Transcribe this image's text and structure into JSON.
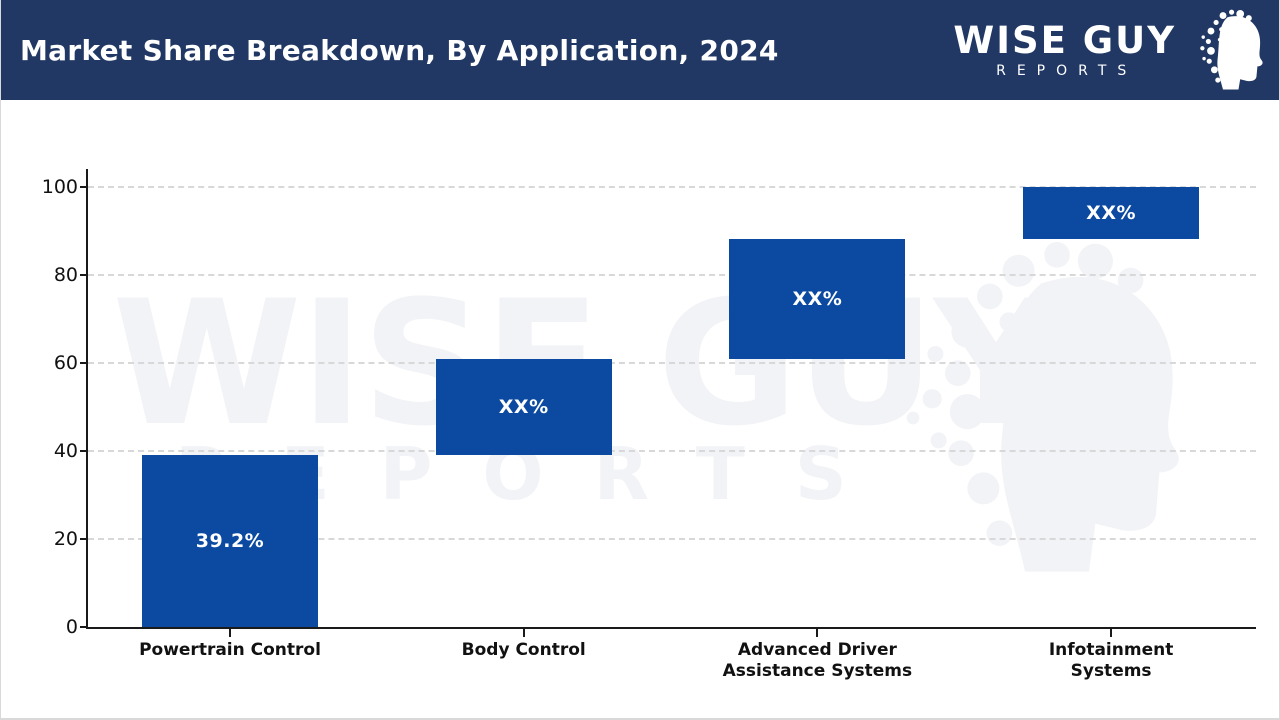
{
  "header": {
    "title": "Market Share Breakdown, By Application, 2024",
    "brand_line1": "WISE GUY",
    "brand_line2": "REPORTS"
  },
  "watermark": {
    "line1": "WISE GUY",
    "line2": "REPORTS",
    "head_icon": "head-profile-dots"
  },
  "colors": {
    "header_bg": "#213864",
    "bar_fill": "#0b4aa0",
    "grid": "#d8d8d8",
    "axis": "#1a1a1a",
    "watermark": "#f2f3f6",
    "title_text": "#ffffff",
    "bar_label_text": "#ffffff"
  },
  "chart_data": {
    "type": "bar",
    "subtype": "waterfall-stacked-segments",
    "title": "Market Share Breakdown, By Application, 2024",
    "xlabel": "",
    "ylabel": "",
    "ylim": [
      0,
      100
    ],
    "yticks": [
      0,
      20,
      40,
      60,
      80,
      100
    ],
    "grid": "horizontal-dashed",
    "legend": "none",
    "categories": [
      "Powertrain Control",
      "Body Control",
      "Advanced Driver Assistance Systems",
      "Infotainment Systems"
    ],
    "category_label_lines": [
      [
        "Powertrain Control"
      ],
      [
        "Body Control"
      ],
      [
        "Advanced Driver",
        "Assistance Systems"
      ],
      [
        "Infotainment",
        "Systems"
      ]
    ],
    "segments": [
      {
        "category": "Powertrain Control",
        "start": 0,
        "end": 39.2,
        "value": 39.2,
        "label": "39.2%"
      },
      {
        "category": "Body Control",
        "start": 39.2,
        "end": 61,
        "value": 21.8,
        "label": "XX%"
      },
      {
        "category": "Advanced Driver Assistance Systems",
        "start": 61,
        "end": 88.2,
        "value": 27.2,
        "label": "XX%"
      },
      {
        "category": "Infotainment Systems",
        "start": 88.2,
        "end": 100,
        "value": 11.8,
        "label": "XX%"
      }
    ]
  }
}
